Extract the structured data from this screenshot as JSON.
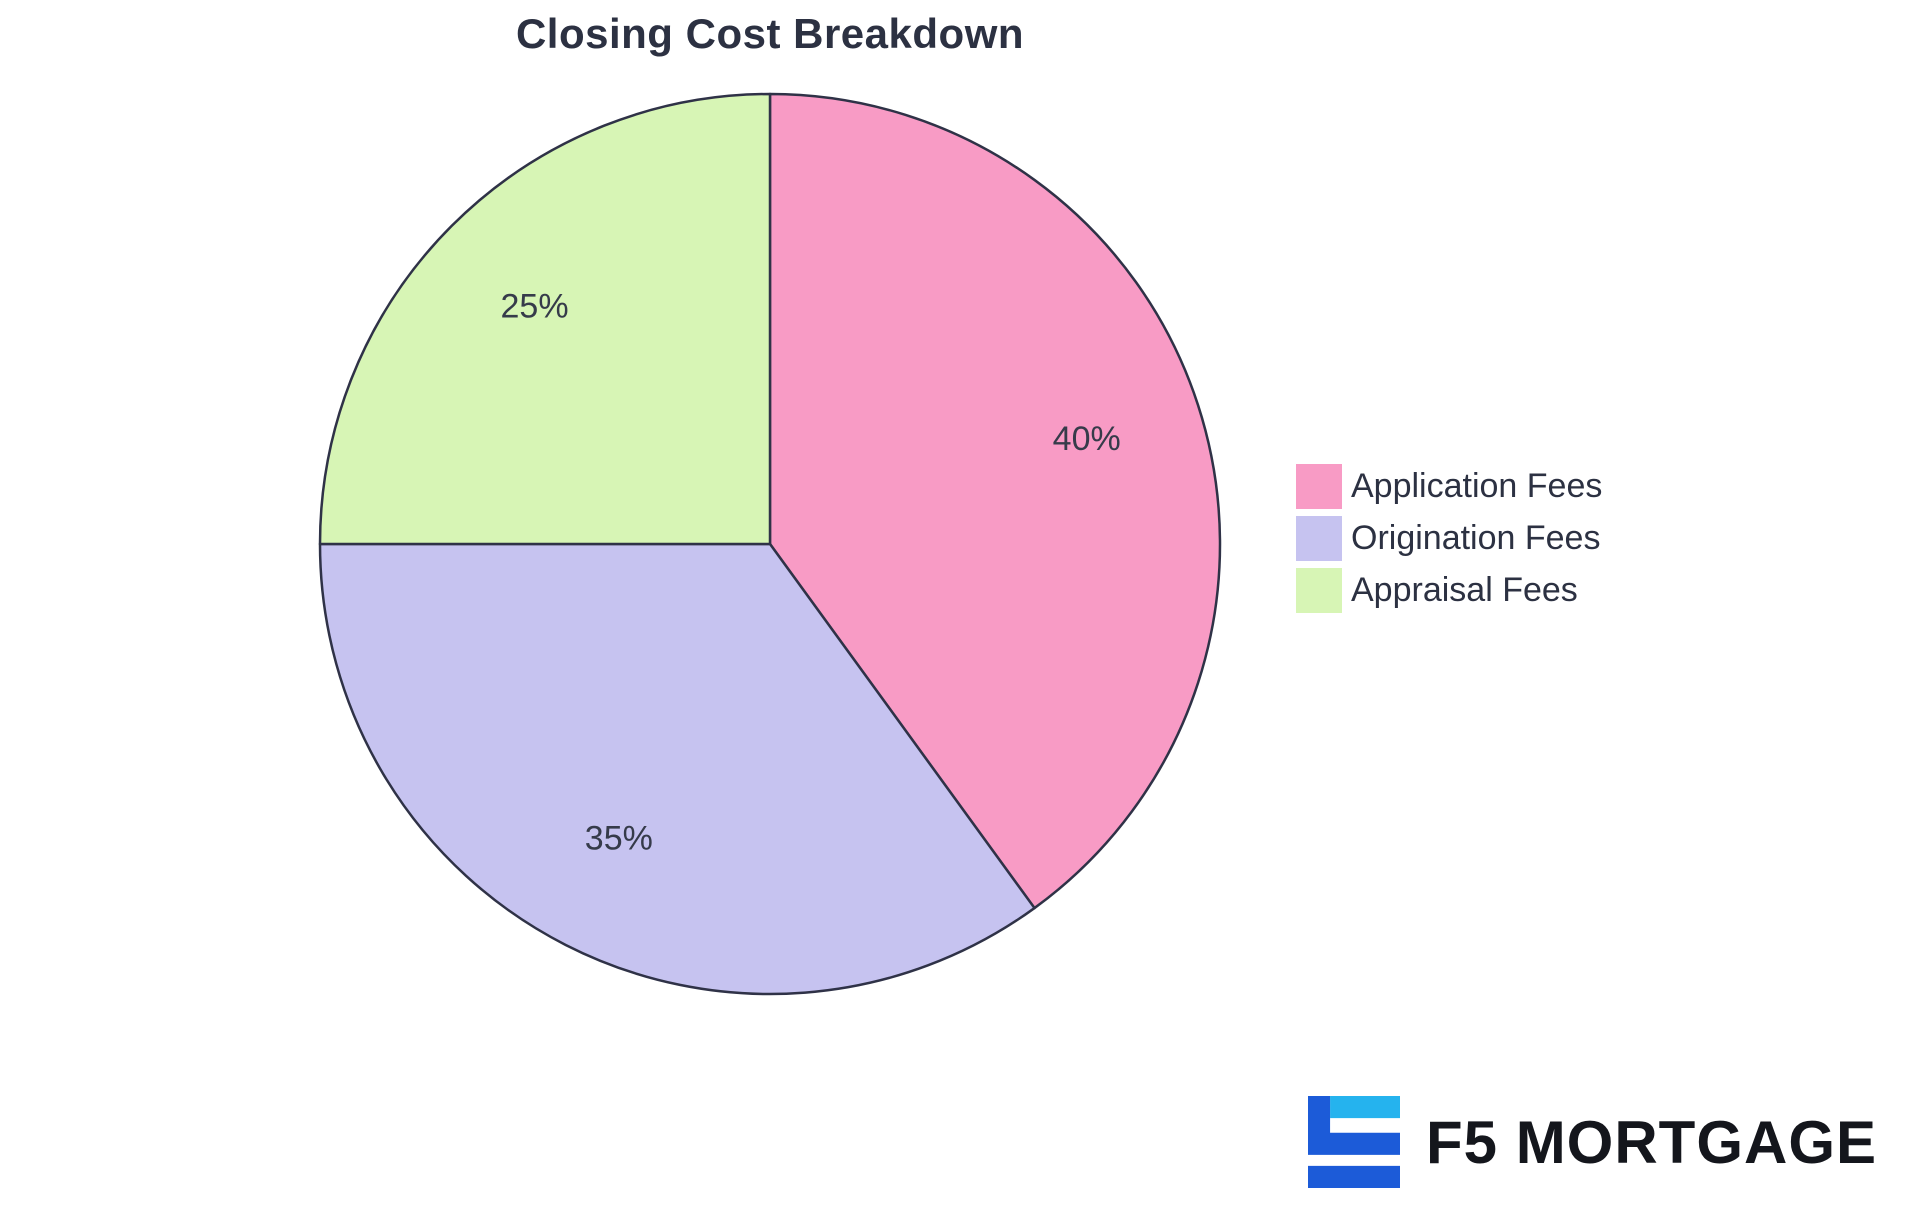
{
  "page": {
    "background_color": "#ffffff"
  },
  "chart_data": {
    "type": "pie",
    "title": "Closing Cost Breakdown",
    "labels": [
      "Application Fees",
      "Origination Fees",
      "Appraisal Fees"
    ],
    "values": [
      40,
      35,
      25
    ],
    "value_labels": [
      "40%",
      "35%",
      "25%"
    ],
    "colors": [
      "#f89bc5",
      "#c6c3f0",
      "#d7f5b5"
    ],
    "slice_stroke_color": "#2f3247",
    "label_color": "#363b4a",
    "start_angle": "top",
    "direction": "clockwise",
    "legend_position": "right",
    "label_radius_fraction": 0.74
  },
  "branding": {
    "logo_text": "F5 MORTGAGE",
    "icon": "f5-logo-icon",
    "icon_cyan": "#25b3ee",
    "icon_blue": "#1c5bd8",
    "text_color": "#14161c"
  }
}
